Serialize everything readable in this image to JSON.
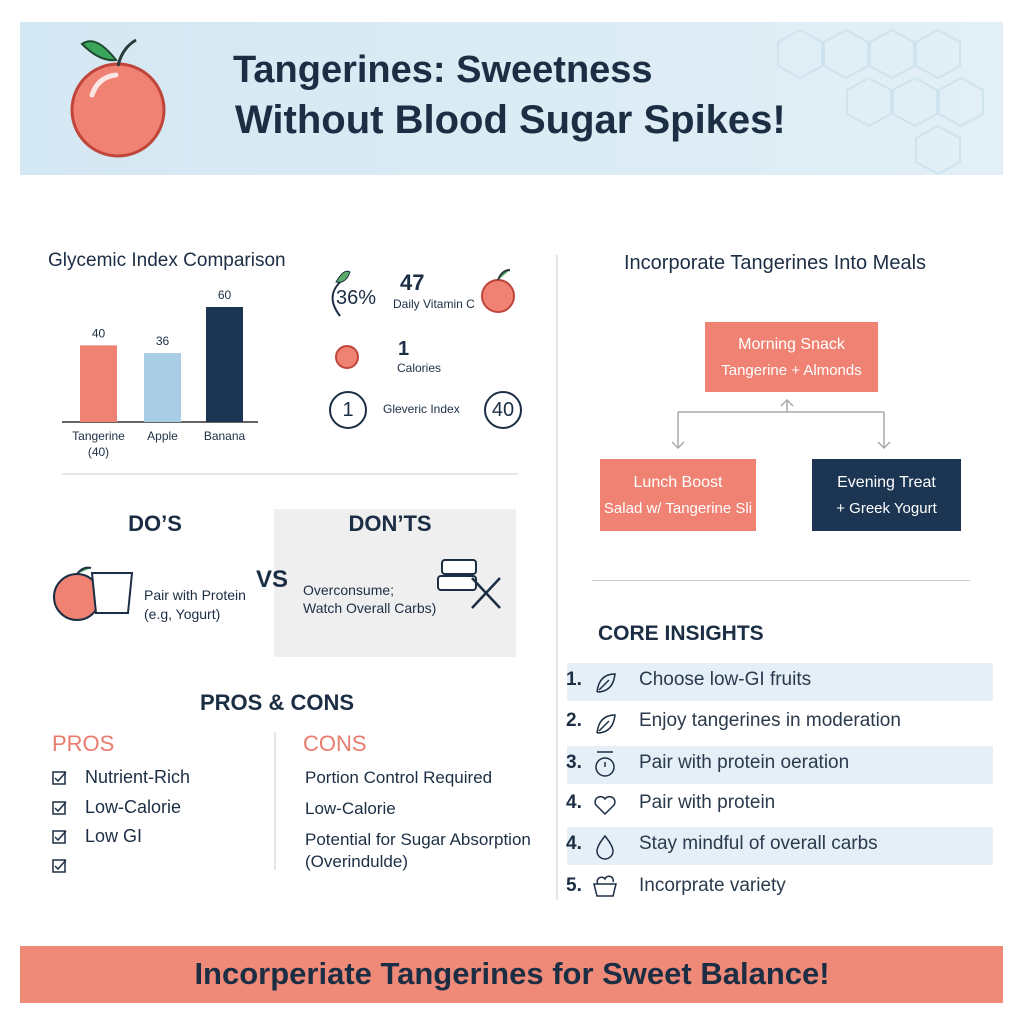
{
  "header": {
    "title_lines": [
      "Tangerines: Sweetness",
      "Without Blood Sugar Spikes!"
    ]
  },
  "gi_chart": {
    "type": "bar",
    "title": "Glycemic Index Comparison",
    "categories": [
      "Tangerine (40)",
      "Apple",
      "Banana"
    ],
    "values": [
      40,
      36,
      60
    ],
    "colors": [
      "#ef8273",
      "#a8cde5",
      "#1b3552"
    ]
  },
  "stats": [
    {
      "value": "36%",
      "number": "47",
      "label": "Daily Vitamin C"
    },
    {
      "number": "1",
      "label": "Calories"
    },
    {
      "badge": "1",
      "label": "Gleveric Index",
      "badge_right": "40"
    }
  ],
  "dos_donts": {
    "dos_title": "DO’S",
    "donts_title": "DON’TS",
    "vs": "VS",
    "do_text": [
      "Pair with Protein",
      "(e.g, Yogurt)"
    ],
    "dont_text": [
      "Overconsume;",
      "Watch Overall Carbs)"
    ]
  },
  "pros_cons": {
    "title": "PROS & CONS",
    "pros_title": "PROS",
    "cons_title": "CONS",
    "pros": [
      "Nutrient-Rich",
      "Low-Calorie",
      "Low GI"
    ],
    "cons": [
      "Portion Control Required",
      "Low-Calorie",
      "Potential for Sugar Absorption",
      "(Overindulde)"
    ]
  },
  "meals": {
    "title": "Incorporate Tangerines Into Meals",
    "nodes": [
      {
        "label": "Morning Snack",
        "detail": "Tangerine + Almonds"
      },
      {
        "label": "Lunch Boost",
        "detail": "Salad w/ Tangerine Sli"
      },
      {
        "label": "Evening Treat",
        "detail": "+ Greek Yogurt"
      }
    ]
  },
  "insights": {
    "title": "CORE INSIGHTS",
    "items": [
      {
        "number": "1.",
        "text": "Choose low-GI fruits"
      },
      {
        "number": "2.",
        "text": "Enjoy tangerines in moderation"
      },
      {
        "number": "3.",
        "text": "Pair with protein oeration"
      },
      {
        "number": "4.",
        "text": "Pair with protein"
      },
      {
        "number": "4.",
        "text": "Stay mindful of overall carbs"
      },
      {
        "number": "5.",
        "text": "Incorprate variety"
      }
    ]
  },
  "footer": {
    "text": "Incorperiate Tangerines for Sweet Balance!"
  }
}
